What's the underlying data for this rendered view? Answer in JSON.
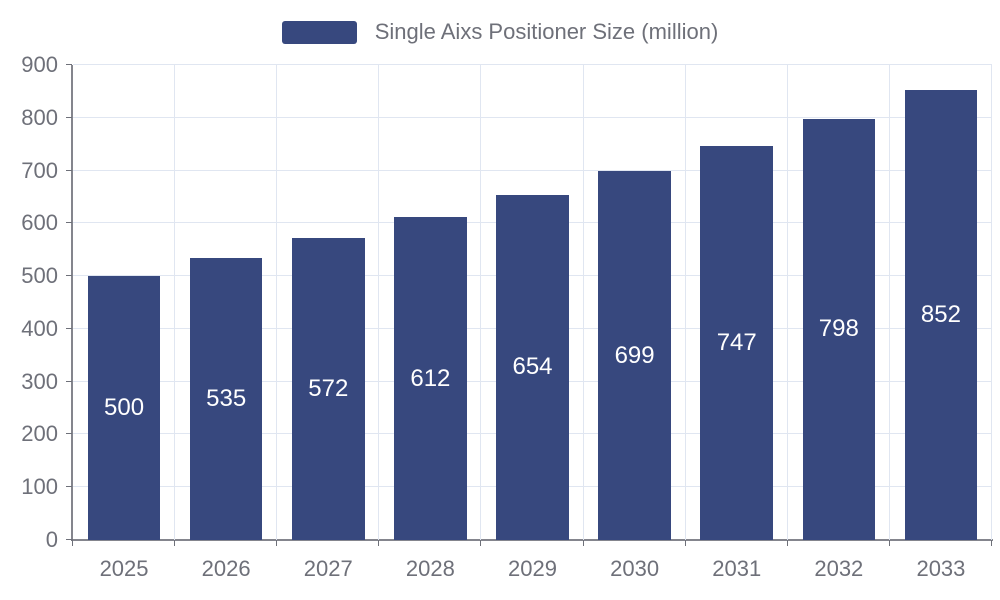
{
  "chart_data": {
    "type": "bar",
    "title": "Single Aixs Positioner Size (million)",
    "categories": [
      "2025",
      "2026",
      "2027",
      "2028",
      "2029",
      "2030",
      "2031",
      "2032",
      "2033"
    ],
    "series": [
      {
        "name": "Single Aixs Positioner Size (million)",
        "values": [
          500,
          535,
          572,
          612,
          654,
          699,
          747,
          798,
          852
        ]
      }
    ],
    "xlabel": "",
    "ylabel": "",
    "ylim": [
      0,
      900
    ],
    "yticks": [
      0,
      100,
      200,
      300,
      400,
      500,
      600,
      700,
      800,
      900
    ],
    "grid": true,
    "legend_position": "top-center",
    "value_labels_position": "inside-center",
    "colors": {
      "bar": "#37487E",
      "bar_value_label": "#ffffff",
      "axis_line": "#6E7079",
      "axis_text": "#6E7079",
      "gridline": "#E0E6F1",
      "background": "#ffffff"
    }
  }
}
